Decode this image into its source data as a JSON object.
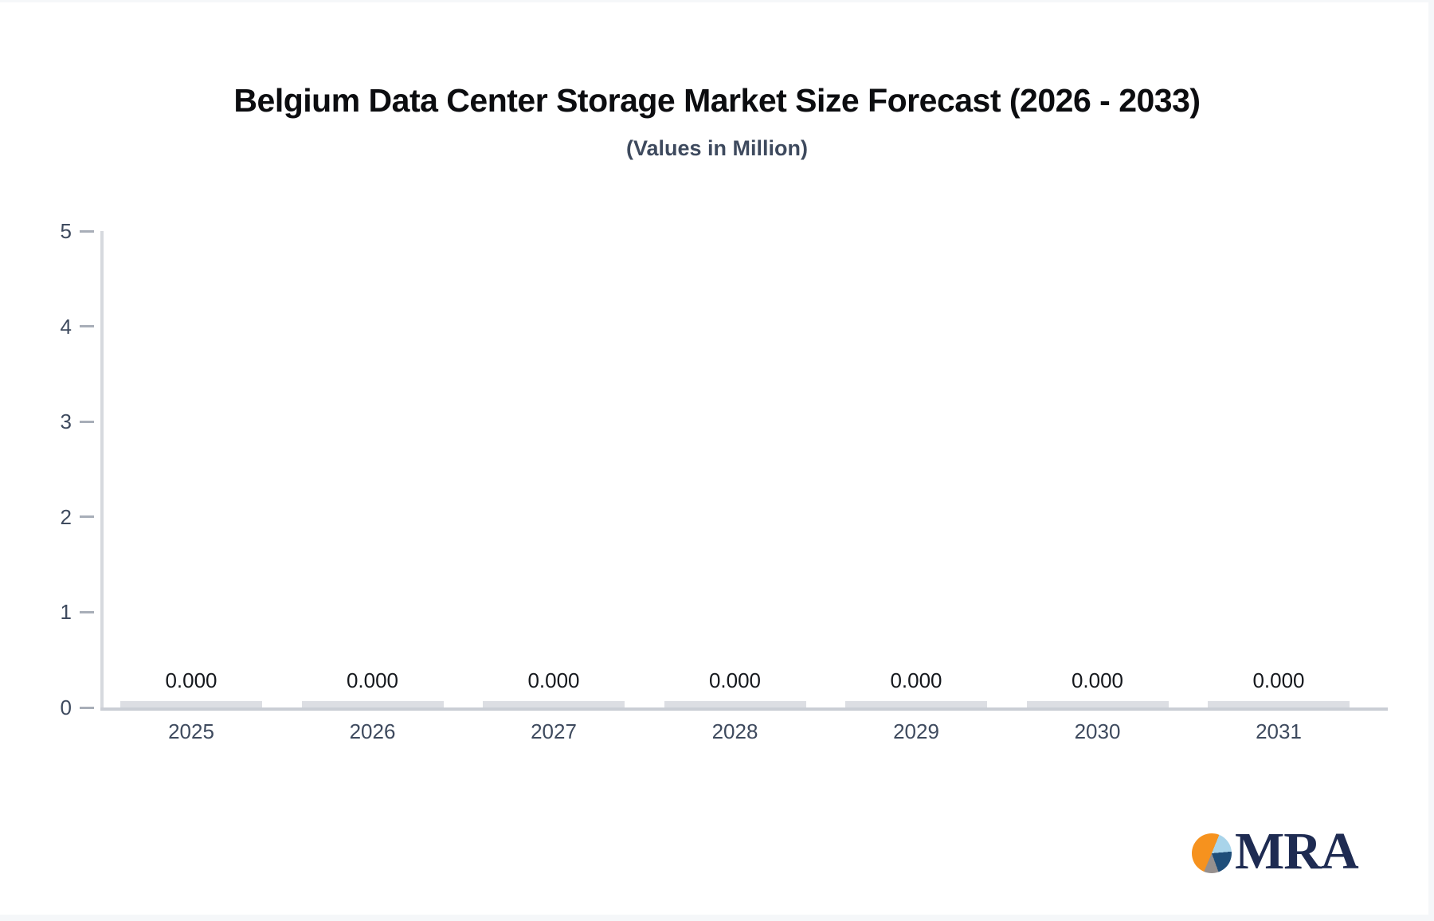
{
  "page": {
    "background": "#ffffff",
    "edge_strip_color": "#f5f7f9"
  },
  "header": {
    "title": "Belgium Data Center Storage Market Size Forecast (2026 - 2033)",
    "subtitle": "(Values in Million)"
  },
  "chart_data": {
    "type": "bar",
    "title": "Belgium Data Center Storage Market Size Forecast (2026 - 2033)",
    "subtitle": "(Values in Million)",
    "categories": [
      "2025",
      "2026",
      "2027",
      "2028",
      "2029",
      "2030",
      "2031"
    ],
    "values": [
      0,
      0,
      0,
      0,
      0,
      0,
      0
    ],
    "value_labels": [
      "0.000",
      "0.000",
      "0.000",
      "0.000",
      "0.000",
      "0.000",
      "0.000"
    ],
    "xlabel": "",
    "ylabel": "",
    "ylim": [
      0,
      5
    ],
    "yticks": [
      0,
      1,
      2,
      3,
      4,
      5
    ],
    "grid": false,
    "legend": false,
    "bar_color": "#dcdee3",
    "axis_color": "#d6d9de",
    "baseline_color": "#caced5",
    "tick_mark_color": "#a8aeb8",
    "axis_label_color": "#3e4a5e",
    "value_label_color": "#15181d"
  },
  "logo": {
    "text": "MRA",
    "text_color": "#1e2b52",
    "pie_colors": {
      "orange": "#f6921e",
      "light_blue": "#a9d4ea",
      "navy": "#1f4e79",
      "gray": "#96908e"
    }
  }
}
